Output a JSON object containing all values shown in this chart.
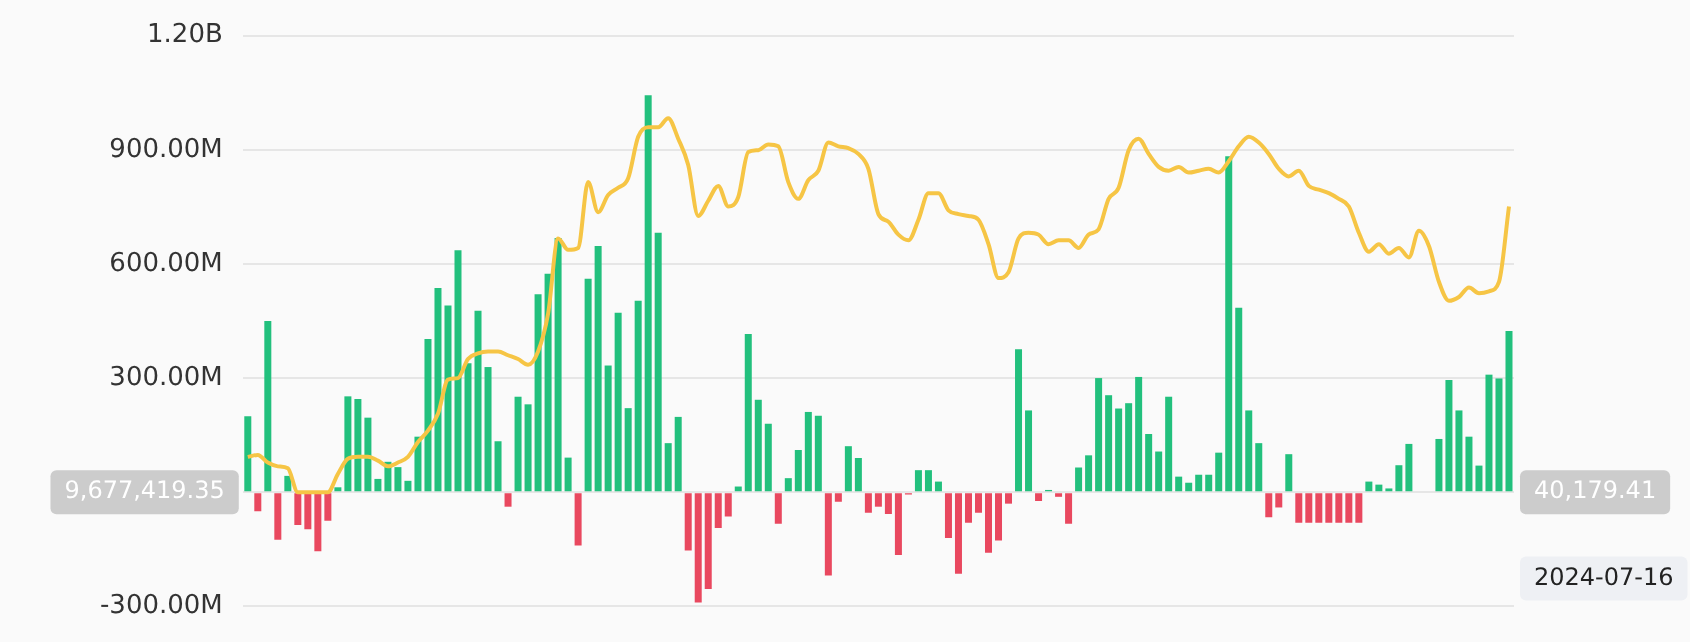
{
  "chart_data": {
    "type": "bar",
    "stacked": true,
    "tick_labels": "y",
    "grid": "y",
    "legend": false,
    "marker": "none",
    "categories": [
      null,
      null,
      null,
      null,
      null,
      null,
      null,
      null,
      null,
      null,
      null,
      null,
      null,
      null,
      null,
      null,
      null,
      null,
      null,
      null,
      null,
      null,
      null,
      null,
      null,
      null,
      null,
      null,
      null,
      null,
      null,
      null,
      null,
      null,
      null,
      null,
      null,
      null,
      null,
      null,
      null,
      null,
      null,
      null,
      null,
      null,
      null,
      null,
      null,
      null,
      null,
      null,
      null,
      null,
      null,
      null,
      null,
      null,
      null,
      null,
      null,
      null,
      null,
      null,
      null,
      null,
      null,
      null,
      null,
      null,
      null,
      null,
      null,
      null,
      null,
      null,
      null,
      null,
      null,
      null,
      null,
      null,
      null,
      null,
      null,
      null,
      null,
      null,
      null,
      null,
      null,
      null,
      null,
      null,
      null,
      null,
      null,
      null,
      null,
      null,
      null,
      null,
      null,
      null,
      null,
      null,
      null,
      null,
      null,
      null,
      null,
      null,
      null,
      null,
      null,
      null,
      null,
      null,
      null,
      null,
      null,
      null,
      null,
      null,
      null,
      null,
      null
    ],
    "series": [
      {
        "color": "#22c07d",
        "values": [
          200000000.0,
          null,
          450000000.0,
          null,
          43000000.0,
          null,
          null,
          null,
          null,
          13000000.0,
          252000000.0,
          245000000.0,
          196000000.0,
          35000000.0,
          80000000.0,
          66000000.0,
          30000000.0,
          146000000.0,
          403000000.0,
          537000000.0,
          491000000.0,
          636000000.0,
          339000000.0,
          477000000.0,
          329000000.0,
          134000000.0,
          null,
          251000000.0,
          231000000.0,
          520000000.0,
          574000000.0,
          668000000.0,
          91000000.0,
          null,
          561000000.0,
          647000000.0,
          333000000.0,
          472000000.0,
          221000000.0,
          503000000.0,
          1043000000.0,
          682000000.0,
          129000000.0,
          198000000.0,
          null,
          null,
          null,
          null,
          null,
          15000000.0,
          416000000.0,
          243000000.0,
          180000000.0,
          null,
          37000000.0,
          111000000.0,
          211000000.0,
          201000000.0,
          null,
          null,
          121000000.0,
          90000000.0,
          null,
          null,
          null,
          null,
          null,
          58000000.0,
          58000000.0,
          28000000.0,
          null,
          null,
          null,
          null,
          null,
          null,
          null,
          376000000.0,
          215000000.0,
          null,
          6000000.0,
          null,
          null,
          65000000.0,
          97000000.0,
          300000000.0,
          255000000.0,
          220000000.0,
          234000000.0,
          303000000.0,
          153000000.0,
          107000000.0,
          251000000.0,
          41000000.0,
          25000000.0,
          46000000.0,
          46000000.0,
          104000000.0,
          883000000.0,
          485000000.0,
          215000000.0,
          129000000.0,
          null,
          null,
          100000000.0,
          null,
          null,
          null,
          null,
          null,
          null,
          null,
          28000000.0,
          20000000.0,
          10000000.0,
          71000000.0,
          127000000.0,
          null,
          null,
          140000000.0,
          295000000.0,
          215000000.0,
          146000000.0,
          70000000.0,
          309000000.0,
          299000000.0,
          424000000.0
        ]
      },
      {
        "color": "#e9485f",
        "values": [
          null,
          -50000000.0,
          null,
          -125000000.0,
          null,
          -86000000.0,
          -97000000.0,
          -155000000.0,
          -75000000.0,
          null,
          null,
          null,
          null,
          null,
          null,
          null,
          null,
          null,
          null,
          null,
          null,
          null,
          null,
          null,
          null,
          null,
          -38000000.0,
          null,
          null,
          null,
          null,
          null,
          null,
          -140000000.0,
          null,
          null,
          null,
          null,
          null,
          null,
          null,
          null,
          null,
          null,
          -153000000.0,
          -290000000.0,
          -254000000.0,
          -94000000.0,
          -64000000.0,
          null,
          null,
          null,
          null,
          -83000000.0,
          null,
          null,
          null,
          null,
          -219000000.0,
          -25000000.0,
          null,
          null,
          -54000000.0,
          -38000000.0,
          -57000000.0,
          -165000000.0,
          -6000000.0,
          null,
          null,
          null,
          -120000000.0,
          -214000000.0,
          -80000000.0,
          -54000000.0,
          -159000000.0,
          -127000000.0,
          -30000000.0,
          null,
          null,
          -23000000.0,
          null,
          -12000000.0,
          -83000000.0,
          null,
          null,
          null,
          null,
          null,
          null,
          null,
          null,
          null,
          null,
          null,
          null,
          null,
          null,
          null,
          null,
          null,
          null,
          null,
          -66000000.0,
          -40000000.0,
          null,
          -80000000.0,
          -80000000.0,
          -80000000.0,
          -80000000.0,
          -80000000.0,
          -80000000.0,
          -80000000.0,
          null,
          null,
          null,
          null,
          null,
          null,
          null,
          null,
          null,
          null,
          null,
          null,
          null,
          null,
          null
        ]
      },
      {
        "type": "line",
        "color": "#f6c545",
        "values": [
          93000000.0,
          98000000.0,
          78000000.0,
          68000000.0,
          63000000.0,
          0,
          0,
          0,
          0,
          48000000.0,
          88000000.0,
          93000000.0,
          93000000.0,
          83000000.0,
          68000000.0,
          78000000.0,
          93000000.0,
          132000000.0,
          162000000.0,
          206000000.0,
          296000000.0,
          300000000.0,
          350000000.0,
          365000000.0,
          370000000.0,
          370000000.0,
          360000000.0,
          350000000.0,
          335000000.0,
          370000000.0,
          469000000.0,
          667000000.0,
          637000000.0,
          642000000.0,
          815000000.0,
          736000000.0,
          781000000.0,
          800000000.0,
          825000000.0,
          934000000.0,
          959000000.0,
          959000000.0,
          983000000.0,
          929000000.0,
          860000000.0,
          726000000.0,
          766000000.0,
          805000000.0,
          751000000.0,
          776000000.0,
          894000000.0,
          899000000.0,
          914000000.0,
          909000000.0,
          815000000.0,
          771000000.0,
          820000000.0,
          845000000.0,
          919000000.0,
          909000000.0,
          904000000.0,
          889000000.0,
          850000000.0,
          731000000.0,
          711000000.0,
          677000000.0,
          662000000.0,
          716000000.0,
          786000000.0,
          786000000.0,
          741000000.0,
          731000000.0,
          726000000.0,
          716000000.0,
          652000000.0,
          563000000.0,
          578000000.0,
          667000000.0,
          682000000.0,
          677000000.0,
          652000000.0,
          662000000.0,
          662000000.0,
          642000000.0,
          677000000.0,
          691000000.0,
          771000000.0,
          800000000.0,
          899000000.0,
          929000000.0,
          889000000.0,
          855000000.0,
          845000000.0,
          855000000.0,
          840000000.0,
          845000000.0,
          850000000.0,
          840000000.0,
          870000000.0,
          909000000.0,
          934000000.0,
          919000000.0,
          889000000.0,
          850000000.0,
          830000000.0,
          845000000.0,
          805000000.0,
          795000000.0,
          786000000.0,
          771000000.0,
          751000000.0,
          682000000.0,
          632000000.0,
          652000000.0,
          627000000.0,
          642000000.0,
          617000000.0,
          687000000.0,
          647000000.0,
          553000000.0,
          503000000.0,
          513000000.0,
          538000000.0,
          523000000.0,
          528000000.0,
          553000000.0,
          751000000.0
        ]
      }
    ],
    "ylim": [
      -300000000,
      1200000000
    ],
    "yticks": [
      {
        "value": -300000000,
        "label": "-300.00M"
      },
      {
        "value": 0,
        "label": null
      },
      {
        "value": 300000000,
        "label": "300.00M"
      },
      {
        "value": 600000000,
        "label": "600.00M"
      },
      {
        "value": 900000000,
        "label": "900.00M"
      },
      {
        "value": 1200000000,
        "label": "1.20B"
      }
    ],
    "annotations": [
      "9,677,419.35",
      "40,179.41",
      "2024-07-16"
    ]
  }
}
